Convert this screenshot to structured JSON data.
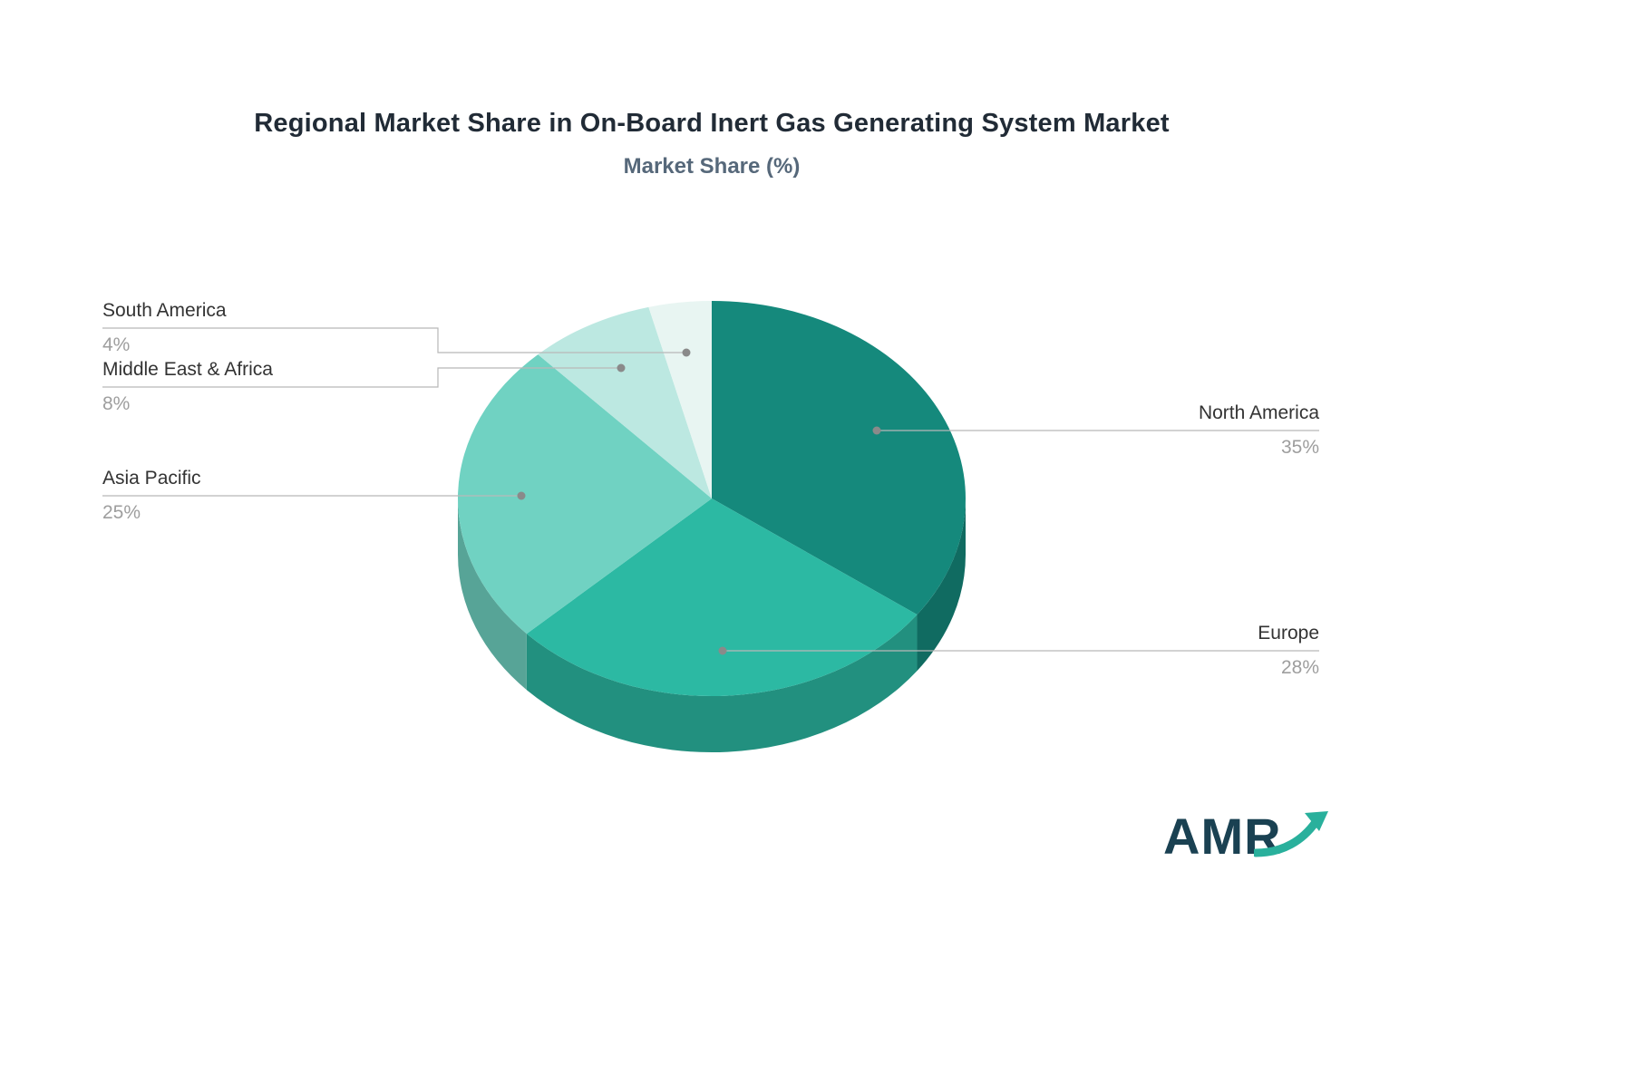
{
  "header": {
    "title": "Regional Market Share in On-Board Inert Gas Generating System Market",
    "subtitle": "Market Share (%)"
  },
  "logo": {
    "text": "AMR"
  },
  "chart_data": {
    "type": "pie",
    "style": "3d-pie",
    "title": "Regional Market Share in On-Board Inert Gas Generating System Market",
    "subtitle": "Market Share (%)",
    "unit": "%",
    "direction": "clockwise",
    "start_angle_deg": 0,
    "legend_position": "none",
    "labels_layout": "callout-lines",
    "slices": [
      {
        "label": "North America",
        "value": 35,
        "value_label": "35%",
        "color": "#15897c",
        "callout_side": "right"
      },
      {
        "label": "Europe",
        "value": 28,
        "value_label": "28%",
        "color": "#2cb9a3",
        "callout_side": "right"
      },
      {
        "label": "Asia Pacific",
        "value": 25,
        "value_label": "25%",
        "color": "#70d2c2",
        "callout_side": "left"
      },
      {
        "label": "Middle East & Africa",
        "value": 8,
        "value_label": "8%",
        "color": "#bce8e1",
        "callout_side": "left"
      },
      {
        "label": "South America",
        "value": 4,
        "value_label": "4%",
        "color": "#e8f5f2",
        "callout_side": "left"
      }
    ],
    "colors": {
      "connector": "#b8b8b8",
      "dot": "#8a8a8a",
      "label_text": "#333333",
      "percent_text": "#9e9e9e",
      "title_text": "#212b36",
      "subtitle_text": "#56687a",
      "logo_text": "#1a4152",
      "logo_arrow": "#29b09c",
      "background": "#ffffff"
    }
  }
}
